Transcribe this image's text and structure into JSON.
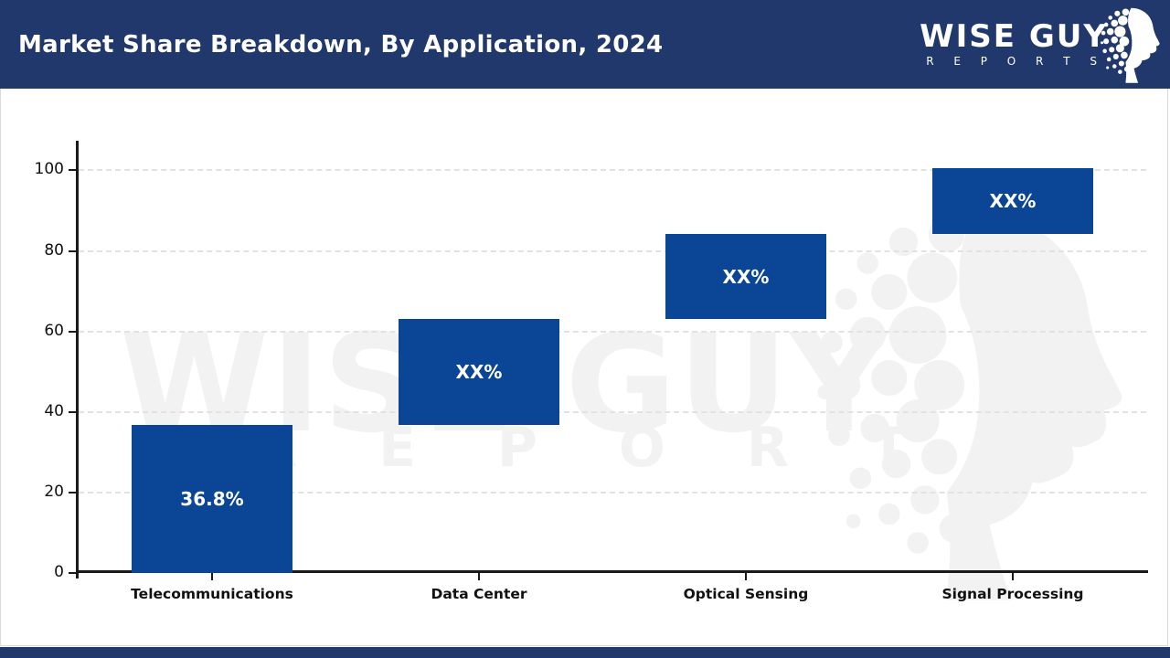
{
  "header": {
    "title": "Market Share Breakdown, By Application, 2024",
    "logo": {
      "name": "WISE GUY",
      "sub": "REPORTS",
      "sub_spaced": "R E P O R T S"
    }
  },
  "watermark": {
    "line1": "WISE GUY",
    "line2": "R E P O R T S"
  },
  "colors": {
    "header_bg": "#20386b",
    "bar": "#0b4596",
    "grid": "#e2e2e2",
    "axis": "#1a1a1a",
    "watermark": "#f2f2f2",
    "value_label": "#ffffff"
  },
  "chart_data": {
    "type": "bar",
    "subtype": "waterfall-stacked-breakdown",
    "title": "Market Share Breakdown, By Application, 2024",
    "categories": [
      "Telecommunications",
      "Data Center",
      "Optical Sensing",
      "Signal Processing"
    ],
    "segments": [
      {
        "category": "Telecommunications",
        "start": 0,
        "end": 36.8,
        "label": "36.8%"
      },
      {
        "category": "Data Center",
        "start": 36.8,
        "end": 63.2,
        "label": "XX%"
      },
      {
        "category": "Optical Sensing",
        "start": 63.2,
        "end": 84.1,
        "label": "XX%"
      },
      {
        "category": "Signal Processing",
        "start": 84.1,
        "end": 100.5,
        "label": "XX%"
      }
    ],
    "xlabel": "",
    "ylabel": "",
    "yticks": [
      0,
      20,
      40,
      60,
      80,
      100
    ],
    "ylim": [
      0,
      106
    ],
    "grid": "horizontal-dashed",
    "legend": "none",
    "bar_width_fraction": 0.15
  }
}
